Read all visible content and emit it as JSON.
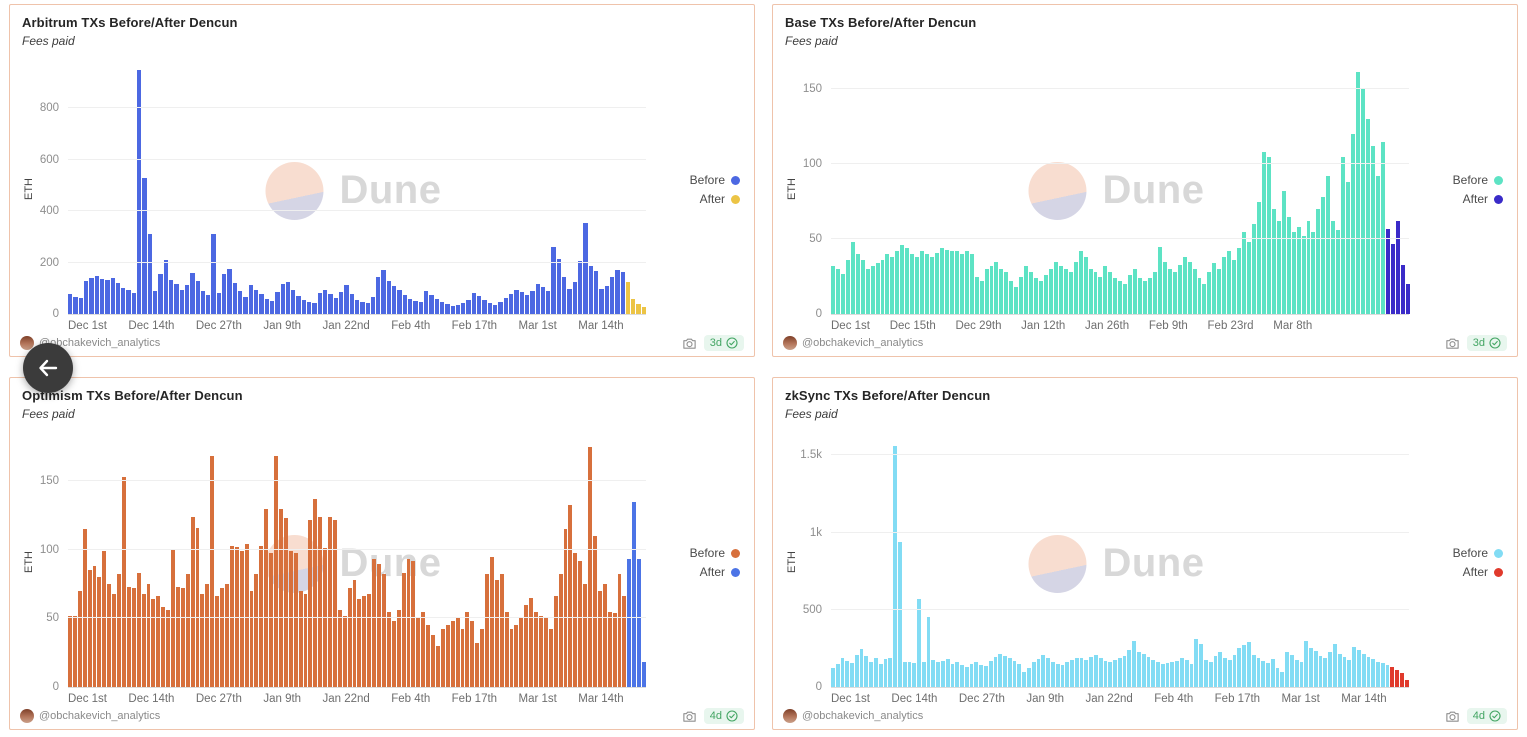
{
  "back_button": {
    "icon": "arrow-left"
  },
  "panels": [
    {
      "title": "Arbitrum TXs Before/After Dencun",
      "subtitle": "Fees paid",
      "ylabel": "ETH",
      "legend_before": "Before",
      "legend_after": "After",
      "watermark": "Dune",
      "author": "@obchakevich_analytics",
      "badge_age": "3d"
    },
    {
      "title": "Base TXs Before/After Dencun",
      "subtitle": "Fees paid",
      "ylabel": "ETH",
      "legend_before": "Before",
      "legend_after": "After",
      "watermark": "Dune",
      "author": "@obchakevich_analytics",
      "badge_age": "3d"
    },
    {
      "title": "Optimism TXs Before/After Dencun",
      "subtitle": "Fees paid",
      "ylabel": "ETH",
      "legend_before": "Before",
      "legend_after": "After",
      "watermark": "Dune",
      "author": "@obchakevich_analytics",
      "badge_age": "4d"
    },
    {
      "title": "zkSync TXs Before/After Dencun",
      "subtitle": "Fees paid",
      "ylabel": "ETH",
      "legend_before": "Before",
      "legend_after": "After",
      "watermark": "Dune",
      "author": "@obchakevich_analytics",
      "badge_age": "4d"
    }
  ],
  "chart_data": [
    {
      "type": "bar",
      "title": "Arbitrum TXs Before/After Dencun",
      "subtitle": "Fees paid",
      "ylabel": "ETH",
      "ylim": [
        0,
        960
      ],
      "yticks": [
        0,
        200,
        400,
        600,
        800
      ],
      "ytick_labels": [
        "0",
        "200",
        "400",
        "600",
        "800"
      ],
      "x_tick_labels": [
        "Dec 1st",
        "Dec 14th",
        "Dec 27th",
        "Jan 9th",
        "Jan 22nd",
        "Feb 4th",
        "Feb 17th",
        "Mar 1st",
        "Mar 14th"
      ],
      "xlabels_right_inset_pct": 3,
      "grid": true,
      "legend_position": "right",
      "series": [
        {
          "name": "Before",
          "color": "#4c68e2",
          "values": [
            78,
            68,
            62,
            128,
            140,
            146,
            138,
            132,
            141,
            122,
            100,
            92,
            80,
            950,
            530,
            312,
            90,
            155,
            210,
            133,
            118,
            95,
            112,
            160,
            128,
            88,
            72,
            310,
            80,
            155,
            175,
            120,
            88,
            66,
            112,
            95,
            78,
            60,
            50,
            85,
            118,
            124,
            92,
            70,
            56,
            48,
            44,
            80,
            95,
            76,
            62,
            85,
            112,
            78,
            56,
            48,
            42,
            68,
            145,
            170,
            128,
            108,
            92,
            75,
            60,
            52,
            46,
            88,
            72,
            58,
            48,
            38,
            30,
            36,
            42,
            55,
            80,
            70,
            55,
            42,
            36,
            48,
            62,
            78,
            95,
            85,
            72,
            90,
            118,
            105,
            88,
            260,
            215,
            145,
            98,
            125,
            205,
            355,
            185,
            168,
            96,
            108,
            145,
            172,
            165
          ]
        },
        {
          "name": "After",
          "color": "#ecc445",
          "values": [
            125,
            58,
            38,
            28
          ]
        }
      ]
    },
    {
      "type": "bar",
      "title": "Base TXs Before/After Dencun",
      "subtitle": "Fees paid",
      "ylabel": "ETH",
      "ylim": [
        0,
        165
      ],
      "yticks": [
        0,
        50,
        100,
        150
      ],
      "ytick_labels": [
        "0",
        "50",
        "100",
        "150"
      ],
      "x_tick_labels": [
        "Dec 1st",
        "Dec 15th",
        "Dec 29th",
        "Jan 12th",
        "Jan 26th",
        "Feb 9th",
        "Feb 23rd",
        "Mar 8th"
      ],
      "xlabels_right_inset_pct": 13,
      "grid": true,
      "legend_position": "right",
      "series": [
        {
          "name": "Before",
          "color": "#5de3c4",
          "values": [
            32,
            30,
            27,
            36,
            48,
            40,
            36,
            30,
            32,
            34,
            36,
            40,
            38,
            42,
            46,
            44,
            40,
            38,
            42,
            40,
            38,
            41,
            44,
            43,
            42,
            42,
            40,
            42,
            40,
            25,
            22,
            30,
            32,
            35,
            30,
            28,
            22,
            18,
            25,
            32,
            28,
            24,
            22,
            26,
            30,
            35,
            32,
            30,
            28,
            35,
            42,
            38,
            30,
            28,
            25,
            32,
            28,
            24,
            22,
            20,
            26,
            30,
            24,
            22,
            24,
            28,
            45,
            35,
            30,
            28,
            33,
            38,
            35,
            30,
            24,
            20,
            28,
            34,
            30,
            38,
            42,
            36,
            44,
            55,
            48,
            60,
            75,
            108,
            105,
            70,
            62,
            82,
            65,
            55,
            58,
            52,
            62,
            55,
            70,
            78,
            92,
            62,
            56,
            105,
            88,
            120,
            162,
            150,
            130,
            112,
            92,
            115
          ]
        },
        {
          "name": "After",
          "color": "#3a2bc8",
          "values": [
            57,
            47,
            62,
            33,
            20
          ]
        }
      ]
    },
    {
      "type": "bar",
      "title": "Optimism TXs Before/After Dencun",
      "subtitle": "Fees paid",
      "ylabel": "ETH",
      "ylim": [
        0,
        180
      ],
      "yticks": [
        0,
        50,
        100,
        150
      ],
      "ytick_labels": [
        "0",
        "50",
        "100",
        "150"
      ],
      "x_tick_labels": [
        "Dec 1st",
        "Dec 14th",
        "Dec 27th",
        "Jan 9th",
        "Jan 22nd",
        "Feb 4th",
        "Feb 17th",
        "Mar 1st",
        "Mar 14th"
      ],
      "xlabels_right_inset_pct": 3,
      "grid": true,
      "legend_position": "right",
      "series": [
        {
          "name": "Before",
          "color": "#d7703c",
          "values": [
            52,
            52,
            70,
            115,
            85,
            88,
            80,
            99,
            75,
            68,
            82,
            153,
            73,
            72,
            83,
            68,
            75,
            64,
            66,
            58,
            56,
            100,
            73,
            72,
            82,
            124,
            116,
            68,
            75,
            168,
            66,
            72,
            75,
            103,
            102,
            99,
            104,
            70,
            82,
            103,
            130,
            98,
            168,
            130,
            123,
            99,
            98,
            70,
            68,
            122,
            137,
            124,
            101,
            124,
            122,
            56,
            52,
            72,
            78,
            64,
            66,
            68,
            93,
            90,
            82,
            55,
            48,
            56,
            83,
            93,
            92,
            50,
            55,
            45,
            38,
            30,
            42,
            45,
            48,
            50,
            42,
            55,
            48,
            32,
            42,
            82,
            95,
            78,
            82,
            55,
            42,
            45,
            50,
            60,
            65,
            55,
            52,
            50,
            42,
            66,
            82,
            115,
            133,
            98,
            92,
            75,
            175,
            110,
            70,
            75,
            55,
            54,
            82,
            66
          ]
        },
        {
          "name": "After",
          "color": "#4c74e6",
          "values": [
            93,
            135,
            93,
            18
          ]
        }
      ]
    },
    {
      "type": "bar",
      "title": "zkSync TXs Before/After Dencun",
      "subtitle": "Fees paid",
      "ylabel": "ETH",
      "ylim": [
        0,
        1600
      ],
      "yticks": [
        0,
        500,
        1000,
        1500
      ],
      "ytick_labels": [
        "0",
        "500",
        "1k",
        "1.5k"
      ],
      "x_tick_labels": [
        "Dec 1st",
        "Dec 14th",
        "Dec 27th",
        "Jan 9th",
        "Jan 22nd",
        "Feb 4th",
        "Feb 17th",
        "Mar 1st",
        "Mar 14th"
      ],
      "xlabels_right_inset_pct": 3,
      "grid": true,
      "legend_position": "right",
      "series": [
        {
          "name": "Before",
          "color": "#82dcf4",
          "values": [
            120,
            150,
            185,
            170,
            155,
            210,
            245,
            200,
            165,
            185,
            150,
            180,
            190,
            1560,
            940,
            165,
            160,
            155,
            570,
            165,
            455,
            175,
            165,
            170,
            180,
            150,
            160,
            140,
            130,
            150,
            165,
            140,
            135,
            170,
            195,
            215,
            200,
            185,
            170,
            150,
            100,
            120,
            160,
            180,
            210,
            185,
            160,
            150,
            140,
            165,
            175,
            190,
            185,
            175,
            195,
            205,
            185,
            170,
            160,
            175,
            185,
            200,
            240,
            300,
            230,
            215,
            195,
            175,
            160,
            150,
            155,
            160,
            170,
            185,
            175,
            150,
            310,
            280,
            175,
            165,
            200,
            230,
            185,
            175,
            210,
            250,
            270,
            290,
            205,
            185,
            170,
            155,
            180,
            120,
            100,
            230,
            205,
            175,
            165,
            300,
            250,
            235,
            200,
            185,
            230,
            280,
            215,
            195,
            175,
            260,
            240,
            215,
            195,
            180,
            165,
            155,
            145
          ]
        },
        {
          "name": "After",
          "color": "#e03a2c",
          "values": [
            130,
            108,
            88,
            45
          ]
        }
      ]
    }
  ]
}
